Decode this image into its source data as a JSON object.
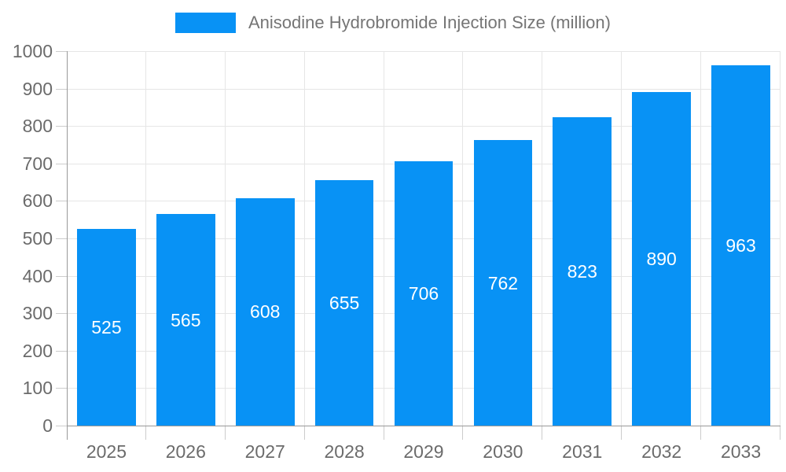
{
  "chart_data": {
    "type": "bar",
    "title": "Anisodine Hydrobromide Injection Size (million)",
    "categories": [
      "2025",
      "2026",
      "2027",
      "2028",
      "2029",
      "2030",
      "2031",
      "2032",
      "2033"
    ],
    "values": [
      525,
      565,
      608,
      655,
      706,
      762,
      823,
      890,
      963
    ],
    "xlabel": "",
    "ylabel": "",
    "ylim": [
      0,
      1000
    ],
    "ytick_step": 100,
    "grid": true,
    "legend_position": "top-center",
    "bar_color": "#0892f5",
    "value_label_color": "#ffffff",
    "value_labels_inside_bars": true
  },
  "legend": {
    "label": "Anisodine Hydrobromide Injection Size (million)"
  },
  "colors": {
    "background": "#ffffff",
    "grid": "#e6e6e6",
    "axis": "#999999",
    "tick": "#cccccc",
    "tick_label_text": "#6b6b6b",
    "legend_text": "#757575"
  }
}
